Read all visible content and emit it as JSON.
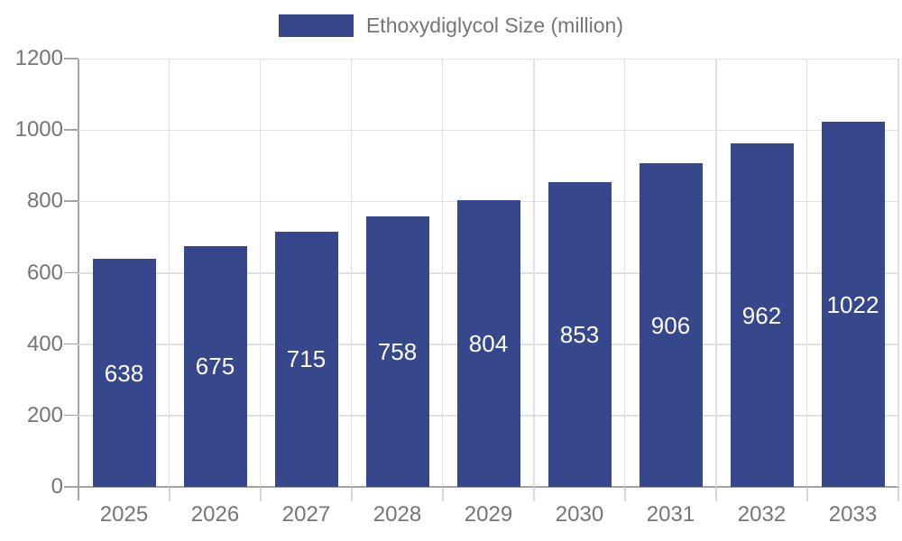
{
  "legend": {
    "items": [
      {
        "label": "Ethoxydiglycol Size (million)",
        "swatch_color": "#36488B"
      }
    ]
  },
  "chart_data": {
    "type": "bar",
    "title": "",
    "categories": [
      "2025",
      "2026",
      "2027",
      "2028",
      "2029",
      "2030",
      "2031",
      "2032",
      "2033"
    ],
    "series": [
      {
        "name": "Ethoxydiglycol Size (million)",
        "values": [
          638,
          675,
          715,
          758,
          804,
          853,
          906,
          962,
          1022
        ]
      }
    ],
    "xlabel": "",
    "ylabel": "",
    "ylim": [
      0,
      1200
    ],
    "yticks": [
      0,
      200,
      400,
      600,
      800,
      1000,
      1200
    ],
    "grid": true,
    "legend_position": "top-center",
    "bar_label_position": "inside-center",
    "colors": {
      "bar": "#36488B",
      "bar_label": "#ffffff",
      "axis_text": "#757575",
      "grid": "#e0e0e0",
      "axis_line": "#a3a3a3",
      "x_tick": "#d8d8d8",
      "background": "#ffffff"
    }
  }
}
